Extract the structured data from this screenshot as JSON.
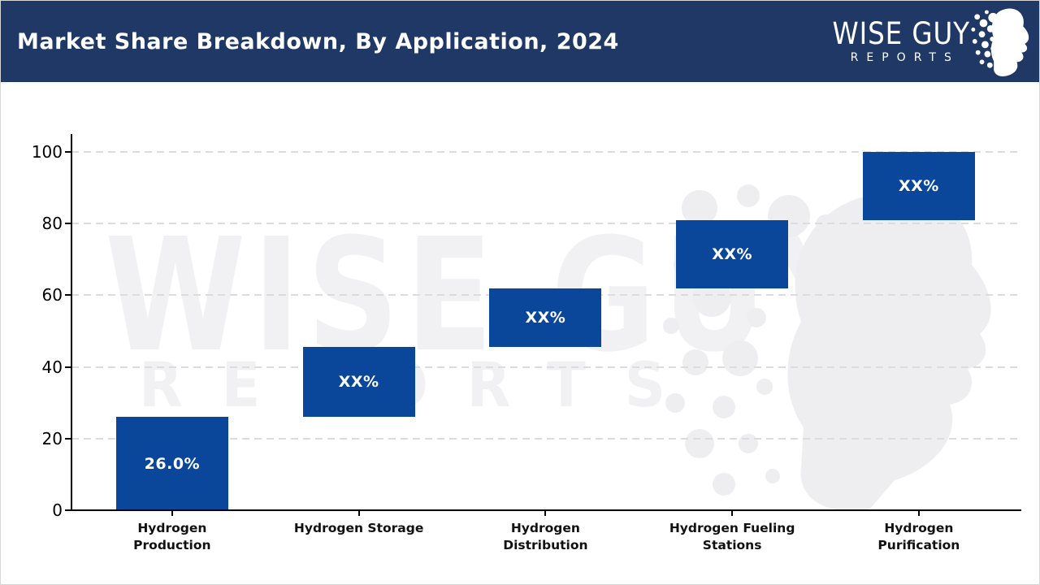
{
  "header": {
    "title": "Market Share Breakdown, By Application, 2024",
    "logo_line1": "WISE GUY",
    "logo_line2": "REPORTS"
  },
  "watermark": {
    "line1": "WISE GUY",
    "line2": "REPORTS"
  },
  "chart_data": {
    "type": "bar",
    "subtype": "waterfall-stacked-percentage",
    "title": "Market Share Breakdown, By Application, 2024",
    "categories": [
      "Hydrogen\nProduction",
      "Hydrogen Storage",
      "Hydrogen\nDistribution",
      "Hydrogen Fueling\nStations",
      "Hydrogen\nPurification"
    ],
    "series": [
      {
        "name": "Market share (%)",
        "segments": [
          {
            "category": "Hydrogen Production",
            "start": 0,
            "end": 26,
            "label": "26.0%"
          },
          {
            "category": "Hydrogen Storage",
            "start": 26,
            "end": 45.5,
            "label": "XX%"
          },
          {
            "category": "Hydrogen Distribution",
            "start": 45.5,
            "end": 62,
            "label": "XX%"
          },
          {
            "category": "Hydrogen Fueling Stations",
            "start": 62,
            "end": 81,
            "label": "XX%"
          },
          {
            "category": "Hydrogen Purification",
            "start": 81,
            "end": 100,
            "label": "XX%"
          }
        ]
      }
    ],
    "ylim": [
      0,
      105
    ],
    "yticks": [
      0,
      20,
      40,
      60,
      80,
      100
    ],
    "grid": "horizontal-dashed",
    "legend": "none",
    "bar_color": "#0a479b",
    "bar_label_color": "#ffffff",
    "axis_color": "#000000",
    "gridline_color": "#dcdcdc",
    "header_bg": "#1f3865"
  }
}
